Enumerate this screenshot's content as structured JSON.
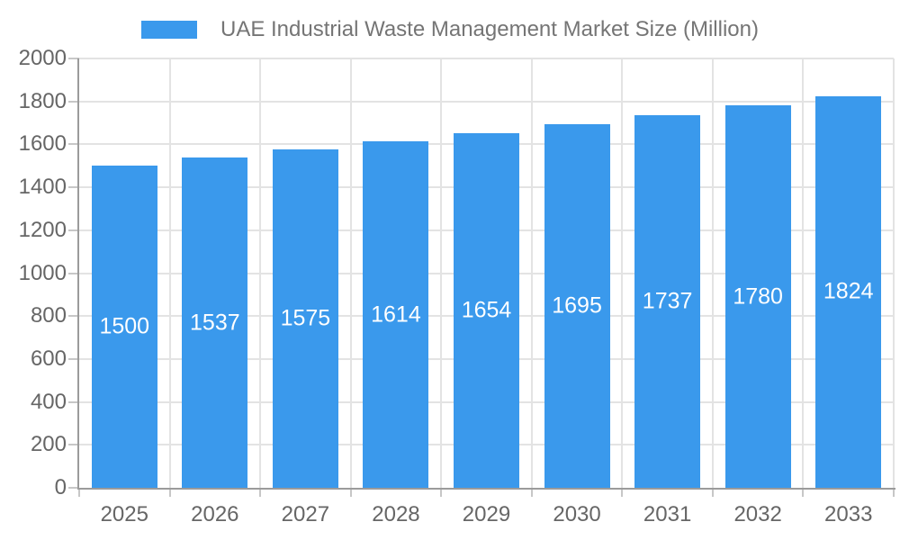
{
  "chart_data": {
    "type": "bar",
    "title": "UAE Industrial Waste Management Market Size (Million)",
    "categories": [
      "2025",
      "2026",
      "2027",
      "2028",
      "2029",
      "2030",
      "2031",
      "2032",
      "2033"
    ],
    "values": [
      1500,
      1537,
      1575,
      1614,
      1654,
      1695,
      1737,
      1780,
      1824
    ],
    "yticks": [
      0,
      200,
      400,
      600,
      800,
      1000,
      1200,
      1400,
      1600,
      1800,
      2000
    ],
    "ylim": [
      0,
      2000
    ],
    "xlabel": "",
    "ylabel": "",
    "grid": true,
    "legend_position": "top",
    "value_label_position": "inside-center",
    "colors": {
      "bar": "#3A99EC",
      "grid": "#E3E3E3",
      "axis": "#9B9B9B",
      "tick": "#C7C7C7",
      "axis_text": "#666666",
      "legend_text": "#757575",
      "value_label": "#FFFFFF",
      "background": "#FFFFFF"
    }
  }
}
